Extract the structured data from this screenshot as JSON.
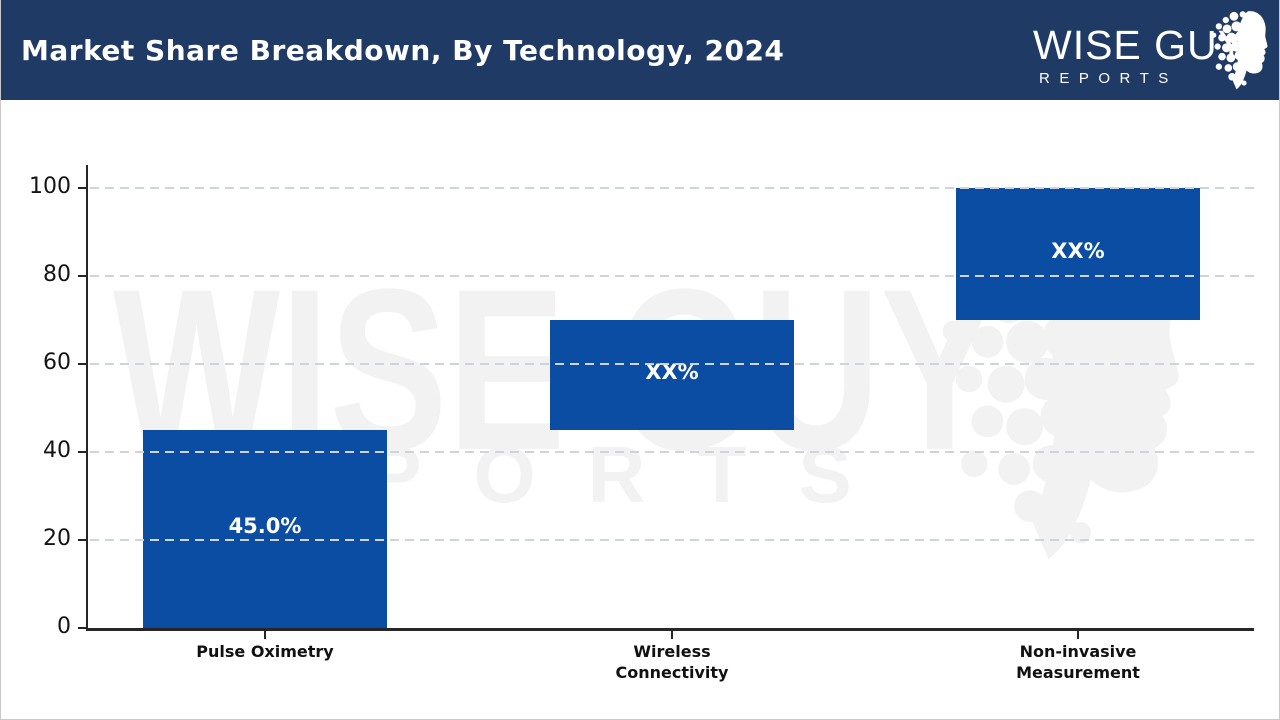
{
  "header": {
    "title": "Market Share Breakdown, By Technology, 2024",
    "logo": {
      "primary": "WISE GUY",
      "secondary": "REPORTS"
    }
  },
  "watermark": {
    "primary": "WISE GUY",
    "secondary": "REPORTS"
  },
  "chart_data": {
    "type": "bar",
    "subtype": "waterfall",
    "title": "Market Share Breakdown, By Technology, 2024",
    "categories": [
      "Pulse Oximetry",
      "Wireless\nConnectivity",
      "Non-invasive\nMeasurement"
    ],
    "segments": [
      {
        "category": "Pulse Oximetry",
        "start": 0,
        "end": 45,
        "value": 45,
        "label": "45.0%"
      },
      {
        "category": "Wireless Connectivity",
        "start": 45,
        "end": 70,
        "value": 25,
        "label": "XX%"
      },
      {
        "category": "Non-invasive Measurement",
        "start": 70,
        "end": 100,
        "value": 30,
        "label": "XX%"
      }
    ],
    "xlabel": "",
    "ylabel": "",
    "ylim": [
      0,
      100
    ],
    "yticks": [
      0,
      20,
      40,
      60,
      80,
      100
    ],
    "grid": "horizontal-dashed",
    "legend": "none",
    "bar_color": "#0b4da2",
    "bar_label_color": "#ffffff"
  },
  "colors": {
    "header_bg": "#203a66",
    "bar": "#0b4da2",
    "axis": "#262626",
    "gridline": "#cfd4da",
    "watermark": "#f2f2f2",
    "page_border": "#c9c9c9",
    "tick_label": "#141414"
  }
}
